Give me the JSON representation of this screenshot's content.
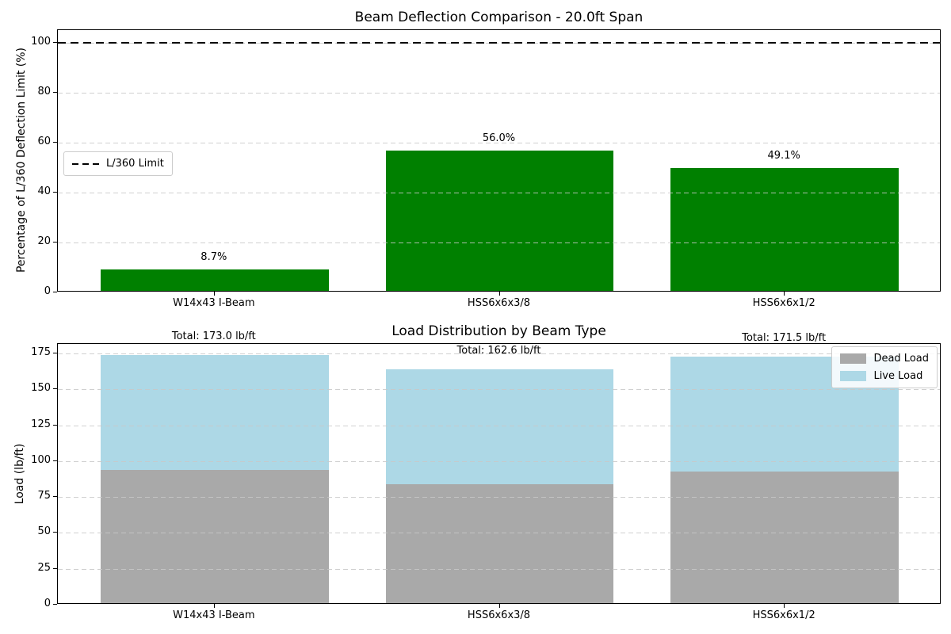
{
  "figure": {
    "background": "#ffffff"
  },
  "chart_data": [
    {
      "type": "bar",
      "title": "Beam Deflection Comparison - 20.0ft Span",
      "ylabel": "Percentage of L/360 Deflection Limit (%)",
      "xlabel": "",
      "categories": [
        "W14x43 I-Beam",
        "HSS6x6x3/8",
        "HSS6x6x1/2"
      ],
      "values": [
        8.7,
        56.0,
        49.1
      ],
      "bar_labels": [
        "8.7%",
        "56.0%",
        "49.1%"
      ],
      "bar_color": "#008000",
      "yticks": [
        0,
        20,
        40,
        60,
        80,
        100
      ],
      "ylim": [
        0,
        105
      ],
      "grid": true,
      "legend_position": "center-left",
      "reference_line": {
        "value": 100,
        "label": "L/360 Limit",
        "color": "#000000",
        "style": "dashed"
      }
    },
    {
      "type": "stacked-bar",
      "title": "Load Distribution by Beam Type",
      "ylabel": "Load (lb/ft)",
      "xlabel": "",
      "categories": [
        "W14x43 I-Beam",
        "HSS6x6x3/8",
        "HSS6x6x1/2"
      ],
      "series": [
        {
          "name": "Dead Load",
          "color": "#a9a9a9",
          "values": [
            93.0,
            82.6,
            91.5
          ]
        },
        {
          "name": "Live Load",
          "color": "#add8e6",
          "values": [
            80.0,
            80.0,
            80.0
          ]
        }
      ],
      "stack_totals": [
        173.0,
        162.6,
        171.5
      ],
      "total_labels": [
        "Total: 173.0 lb/ft",
        "Total: 162.6 lb/ft",
        "Total: 171.5 lb/ft"
      ],
      "yticks": [
        0,
        25,
        50,
        75,
        100,
        125,
        150,
        175
      ],
      "ylim": [
        0,
        181.6
      ],
      "grid": true,
      "legend_position": "upper-right"
    }
  ]
}
